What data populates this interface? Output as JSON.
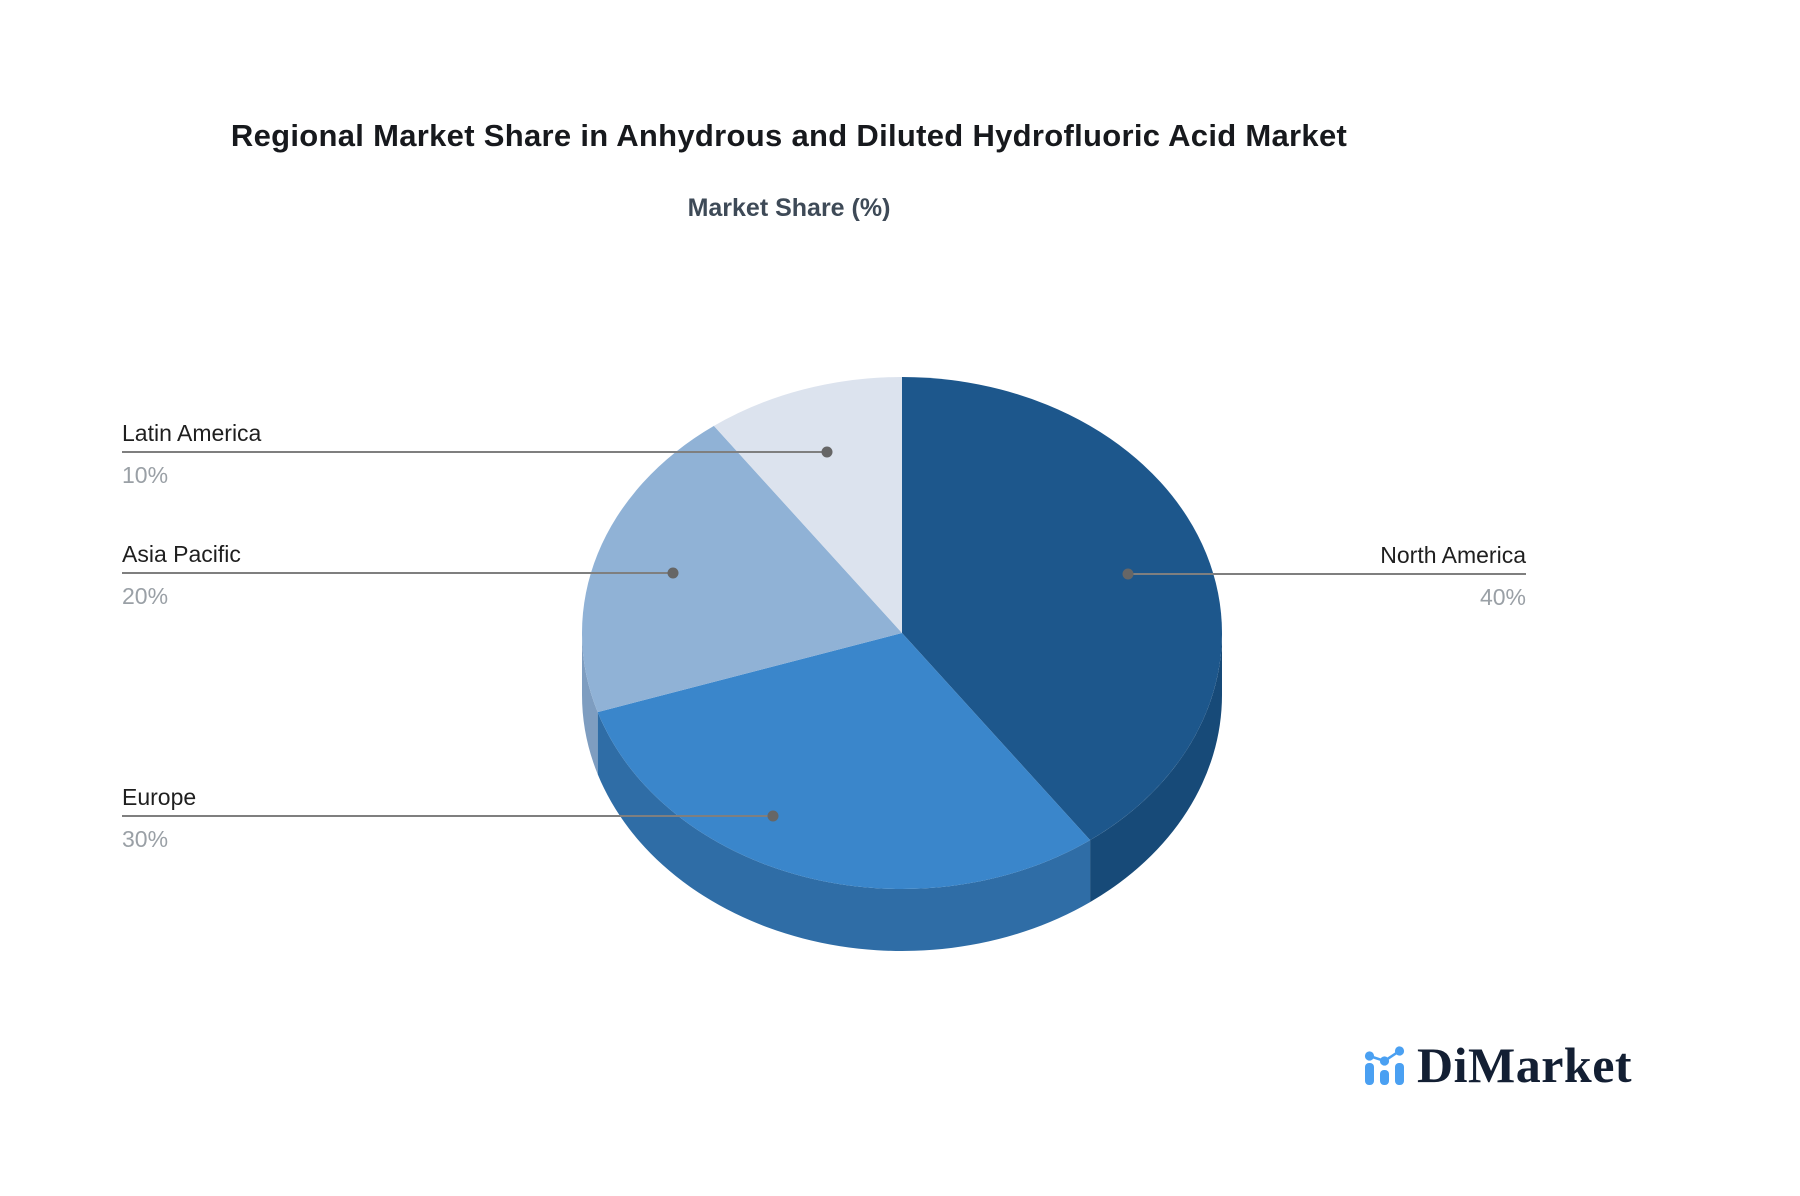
{
  "chart_data": {
    "type": "pie",
    "title": "Regional Market Share in Anhydrous and Diluted Hydrofluoric Acid Market",
    "subtitle": "Market Share (%)",
    "unit": "%",
    "style": "3d-pie",
    "start_angle": "12-o-clock",
    "direction": "clockwise",
    "legend_position": "callout-labels",
    "background": "#ffffff",
    "slices": [
      {
        "label": "North America",
        "value": 40,
        "value_text": "40%",
        "color": "#1d578c",
        "side_color": "#174a78"
      },
      {
        "label": "Europe",
        "value": 30,
        "value_text": "30%",
        "color": "#3a86cb",
        "side_color": "#2f6da6"
      },
      {
        "label": "Asia Pacific",
        "value": 20,
        "value_text": "20%",
        "color": "#90b2d6",
        "side_color": "#7e9dc0"
      },
      {
        "label": "Latin America",
        "value": 10,
        "value_text": "10%",
        "color": "#dce3ee",
        "side_color": "#c3cedd"
      }
    ],
    "callout_line_color": "#7f7f7f",
    "callout_dot_color": "#666666",
    "label_color": "#1f1f1f",
    "value_color": "#9aa0a6"
  },
  "branding": {
    "logo_text": "DiMarket",
    "logo_icon": "bar-line-chart-icon",
    "logo_icon_color": "#4aa0f2",
    "logo_text_color": "#131f33"
  }
}
